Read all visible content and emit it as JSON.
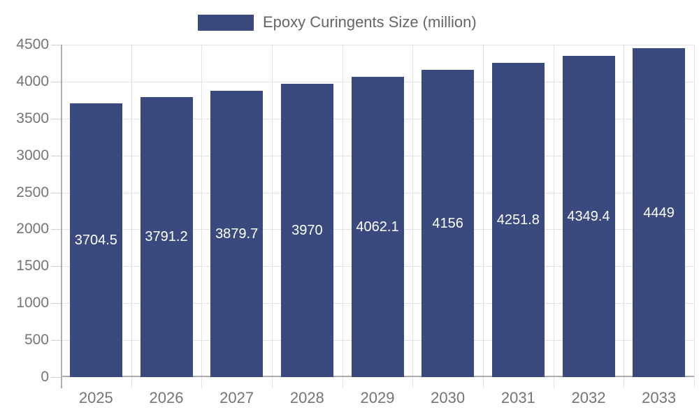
{
  "legend": {
    "label": "Epoxy Curingents Size (million)",
    "swatch_color": "#3a4a7e"
  },
  "chart_data": {
    "type": "bar",
    "title": "",
    "xlabel": "",
    "ylabel": "",
    "categories": [
      "2025",
      "2026",
      "2027",
      "2028",
      "2029",
      "2030",
      "2031",
      "2032",
      "2033"
    ],
    "series": [
      {
        "name": "Epoxy Curingents Size (million)",
        "values": [
          3704.5,
          3791.2,
          3879.7,
          3970,
          4062.1,
          4156,
          4251.8,
          4349.4,
          4449
        ],
        "value_labels": [
          "3704.5",
          "3791.2",
          "3879.7",
          "3970",
          "4062.1",
          "4156",
          "4251.8",
          "4349.4",
          "4449"
        ]
      }
    ],
    "ylim": [
      0,
      4500
    ],
    "yticks": [
      0,
      500,
      1000,
      1500,
      2000,
      2500,
      3000,
      3500,
      4000,
      4500
    ],
    "grid": true,
    "legend_position": "top-center",
    "value_label_position": "inside-center",
    "colors": {
      "bar": "#3a4a7e",
      "value_label_text": "#ffffff",
      "gridline": "#e2e2e2",
      "axis_line": "#adadad",
      "axis_text": "#757575",
      "legend_text": "#666666"
    }
  }
}
